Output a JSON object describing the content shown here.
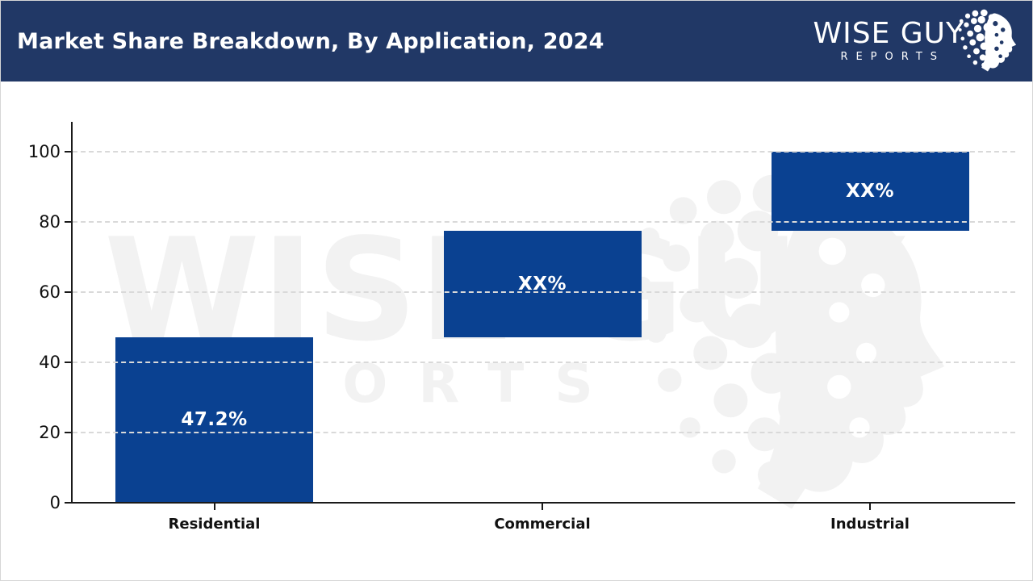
{
  "header": {
    "title": "Market Share Breakdown, By Application, 2024",
    "logo": {
      "line1": "WISE GUY",
      "line2": "REPORTS"
    }
  },
  "watermark": {
    "line1": "WISE GUY",
    "line2": "REPORTS"
  },
  "chart_data": {
    "type": "bar",
    "subtype": "segmented-waterfall-percentage",
    "title": "Market Share Breakdown, By Application, 2024",
    "categories": [
      "Residential",
      "Commercial",
      "Industrial"
    ],
    "segments": [
      {
        "category": "Residential",
        "start": 0,
        "end": 47.2,
        "value_label": "47.2%"
      },
      {
        "category": "Commercial",
        "start": 47.2,
        "end": 77.5,
        "value_label": "XX%"
      },
      {
        "category": "Industrial",
        "start": 77.5,
        "end": 100,
        "value_label": "XX%"
      }
    ],
    "ylim": [
      0,
      100
    ],
    "yticks": [
      0,
      20,
      40,
      60,
      80,
      100
    ],
    "grid": "horizontal-dashed-over-bars",
    "legend": "none",
    "xlabel": "",
    "ylabel": "",
    "colors": {
      "bar": "#0a4191",
      "header_bg": "#213866",
      "grid": "#d9d9d9",
      "watermark": "#f2f2f2",
      "axis": "#1a1a1a",
      "bar_label_text": "#ffffff"
    }
  }
}
